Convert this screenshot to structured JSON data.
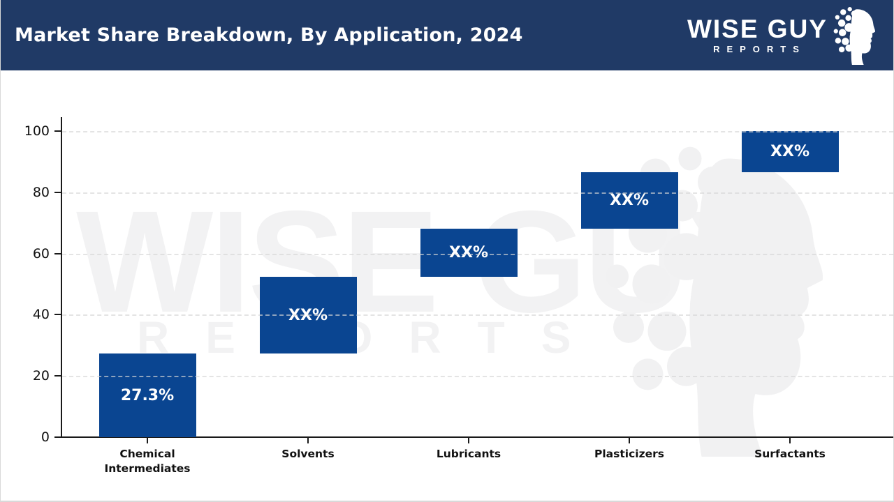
{
  "header": {
    "title": "Market Share Breakdown, By Application, 2024",
    "logo": {
      "line1": "WISE GUY",
      "line2": "REPORTS"
    }
  },
  "watermark": {
    "line1": "WISE GUY",
    "line2": "REPORTS"
  },
  "colors": {
    "header_bg": "#203A66",
    "bar": "#0A4591",
    "grid": "#d9d9d9",
    "axis": "#1a1a1a",
    "bar_label": "#ffffff",
    "watermark": "#f2f2f3"
  },
  "chart_data": {
    "type": "bar",
    "subtype": "waterfall",
    "title": "Market Share Breakdown, By Application, 2024",
    "categories": [
      "Chemical Intermediates",
      "Solvents",
      "Lubricants",
      "Plasticizers",
      "Surfactants"
    ],
    "segments": [
      {
        "category": "Chemical Intermediates",
        "start": 0,
        "end": 27.3,
        "label": "27.3%"
      },
      {
        "category": "Solvents",
        "start": 27.3,
        "end": 52.4,
        "label": "XX%"
      },
      {
        "category": "Lubricants",
        "start": 52.4,
        "end": 68.2,
        "label": "XX%"
      },
      {
        "category": "Plasticizers",
        "start": 68.2,
        "end": 86.6,
        "label": "XX%"
      },
      {
        "category": "Surfactants",
        "start": 86.6,
        "end": 100,
        "label": "XX%"
      }
    ],
    "yticks": [
      0,
      20,
      40,
      60,
      80,
      100
    ],
    "ylim": [
      0,
      104
    ],
    "xlabel": "",
    "ylabel": "",
    "grid": "horizontal-dashed",
    "legend": "none"
  }
}
